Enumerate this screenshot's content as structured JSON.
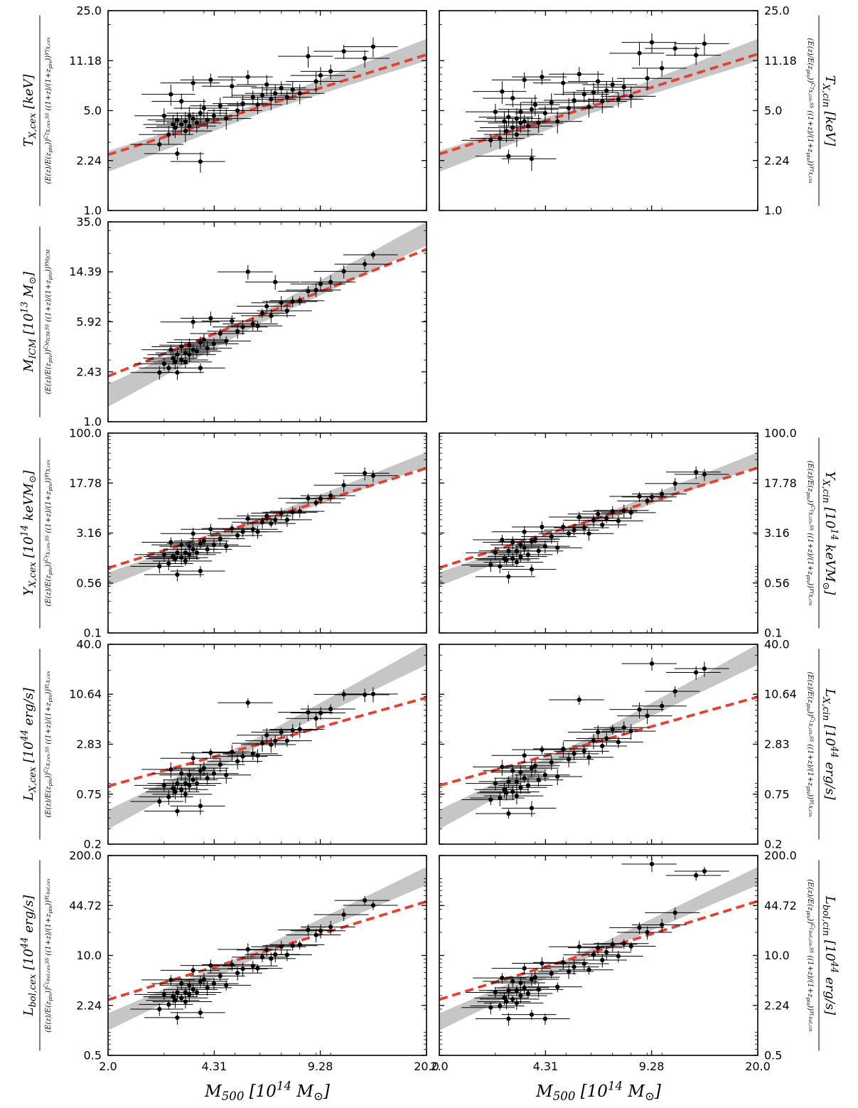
{
  "figure": {
    "background": "#ffffff",
    "accent_red": "#e8402e",
    "band_color": "#c6c6c6",
    "point_color": "#000000",
    "xlabel": "M_{500} [10^{14} M_{⊙}]",
    "xlim": [
      2.0,
      20.0
    ],
    "x_pivot": 6.0,
    "xticks": [
      2.0,
      4.31,
      9.28,
      20.0
    ],
    "xtick_labels": [
      "2.0",
      "4.31",
      "9.28",
      "20.0"
    ]
  },
  "clusters": {
    "m500": [
      2.9,
      3.0,
      3.1,
      3.15,
      3.2,
      3.25,
      3.3,
      3.3,
      3.4,
      3.4,
      3.5,
      3.5,
      3.6,
      3.6,
      3.7,
      3.7,
      3.8,
      3.9,
      3.9,
      4.0,
      4.1,
      4.2,
      4.3,
      4.5,
      4.7,
      4.9,
      5.1,
      5.3,
      5.5,
      5.7,
      5.9,
      6.1,
      6.3,
      6.5,
      6.7,
      7.0,
      7.3,
      7.6,
      8.0,
      8.5,
      9.0,
      9.3,
      10.0,
      11.0,
      12.8,
      13.6
    ],
    "m500_err": [
      0.55,
      0.58,
      0.6,
      0.6,
      0.62,
      0.62,
      0.64,
      0.7,
      0.66,
      0.72,
      0.68,
      0.74,
      0.7,
      0.76,
      0.72,
      0.78,
      0.74,
      0.76,
      0.84,
      0.78,
      0.8,
      0.82,
      0.84,
      0.88,
      0.92,
      0.96,
      1.0,
      1.04,
      1.08,
      1.12,
      1.15,
      1.2,
      1.23,
      1.27,
      1.31,
      1.37,
      1.43,
      1.49,
      1.56,
      1.66,
      1.76,
      1.82,
      1.95,
      2.15,
      2.5,
      2.65
    ]
  },
  "chart_data": [
    {
      "id": "tx-cex",
      "type": "scatter",
      "row": 0,
      "col": 0,
      "ylabel_num": "T_{X,cex} [keV]",
      "ylabel_den": "(E(z)/E(z_{piv}))^{C_{T_{X,cex},SS}} ((1+z)/(1+z_{piv}))^{γ_{T_{X,cex}}}",
      "ylim": [
        1.0,
        25.0
      ],
      "yticks": [
        1.0,
        2.236,
        5.0,
        11.18,
        25.0
      ],
      "ytick_labels": [
        "1.0",
        "2.24",
        "5.0",
        "11.18",
        "25.0"
      ],
      "band": {
        "y_pivot": 5.2,
        "slope": 0.78,
        "w0": 0.035,
        "w1": 0.08
      },
      "fit": {
        "y_pivot": 5.3,
        "slope": 0.7
      },
      "yerr_frac": 0.13,
      "y": [
        2.9,
        4.6,
        3.4,
        6.5,
        4.0,
        3.8,
        4.3,
        2.5,
        5.8,
        4.0,
        4.2,
        3.6,
        4.6,
        3.9,
        4.4,
        7.8,
        4.1,
        2.2,
        4.8,
        5.2,
        4.3,
        8.2,
        4.6,
        5.4,
        4.4,
        7.4,
        5.0,
        5.6,
        8.6,
        6.2,
        5.5,
        6.4,
        7.6,
        6.0,
        6.6,
        7.2,
        6.2,
        7.0,
        6.6,
        12.0,
        8.0,
        8.8,
        9.4,
        13.0,
        11.6,
        14.0
      ]
    },
    {
      "id": "tx-cin",
      "type": "scatter",
      "row": 0,
      "col": 1,
      "ylabel_num": "T_{X,cin} [keV]",
      "ylabel_den": "(E(z)/E(z_{piv}))^{C_{T_{X,cin},SS}} ((1+z)/(1+z_{piv}))^{γ_{T_{X,cin}}}",
      "ylim": [
        1.0,
        25.0
      ],
      "yticks": [
        1.0,
        2.236,
        5.0,
        11.18,
        25.0
      ],
      "ytick_labels": [
        "1.0",
        "2.24",
        "5.0",
        "11.18",
        "25.0"
      ],
      "band": {
        "y_pivot": 5.2,
        "slope": 0.78,
        "w0": 0.035,
        "w1": 0.08
      },
      "fit": {
        "y_pivot": 5.35,
        "slope": 0.7
      },
      "yerr_frac": 0.14,
      "y": [
        3.1,
        4.9,
        3.2,
        6.8,
        4.2,
        3.6,
        4.5,
        2.4,
        6.1,
        3.8,
        4.4,
        3.4,
        4.9,
        4.1,
        4.2,
        8.2,
        3.9,
        2.3,
        5.1,
        5.5,
        4.1,
        8.6,
        4.8,
        5.7,
        4.2,
        7.8,
        5.2,
        5.9,
        9.0,
        6.5,
        5.3,
        6.7,
        8.0,
        5.8,
        6.9,
        7.6,
        6.0,
        7.3,
        6.3,
        12.6,
        8.4,
        15.0,
        9.9,
        13.6,
        12.2,
        14.7
      ]
    },
    {
      "id": "micm",
      "type": "scatter",
      "row": 1,
      "col": 0,
      "ylabel_num": "M_{ICM} [10^{13} M_{⊙}]",
      "ylabel_den": "(E(z)/E(z_{piv}))^{C_{M_{ICM},SS}} ((1+z)/(1+z_{piv}))^{γ_{M_{ICM}}}",
      "ylim": [
        1.0,
        35.0
      ],
      "yticks": [
        1.0,
        2.43,
        5.92,
        14.39,
        35.0
      ],
      "ytick_labels": [
        "1.0",
        "2.43",
        "5.92",
        "14.39",
        "35.0"
      ],
      "band": {
        "y_pivot": 6.3,
        "slope": 1.25,
        "w0": 0.04,
        "w1": 0.1
      },
      "fit": {
        "y_pivot": 6.6,
        "slope": 0.98
      },
      "yerr_frac": 0.1,
      "y": [
        2.4,
        2.8,
        2.6,
        3.6,
        3.1,
        2.9,
        3.3,
        2.4,
        3.8,
        3.0,
        3.4,
        2.9,
        3.9,
        3.3,
        3.6,
        5.9,
        3.5,
        2.6,
        4.1,
        4.3,
        3.7,
        6.3,
        4.0,
        4.8,
        4.2,
        6.0,
        5.0,
        5.4,
        14.4,
        5.7,
        5.5,
        6.9,
        7.8,
        6.6,
        12.0,
        8.3,
        7.2,
        8.5,
        8.6,
        10.2,
        10.4,
        11.6,
        12.0,
        14.5,
        16.5,
        19.5
      ]
    },
    {
      "id": "yx-cex",
      "type": "scatter",
      "row": 2,
      "col": 0,
      "ylabel_num": "Y_{X,cex} [10^{14} keVM_{⊙}]",
      "ylabel_den": "(E(z)/E(z_{piv}))^{C_{Y_{X,cex},SS}} ((1+z)/(1+z_{piv}))^{γ_{Y_{X,cex}}}",
      "ylim": [
        0.1,
        100.0
      ],
      "yticks": [
        0.1,
        0.562,
        3.162,
        17.78,
        100.0
      ],
      "ytick_labels": [
        "0.1",
        "0.56",
        "3.16",
        "17.78",
        "100.0"
      ],
      "band": {
        "y_pivot": 4.6,
        "slope": 1.8,
        "w0": 0.05,
        "w1": 0.11
      },
      "fit": {
        "y_pivot": 4.9,
        "slope": 1.5
      },
      "yerr_frac": 0.17,
      "y": [
        1.0,
        1.5,
        1.1,
        2.3,
        1.4,
        1.3,
        1.6,
        0.75,
        2.1,
        1.35,
        1.6,
        1.2,
        2.0,
        1.5,
        1.8,
        3.1,
        1.6,
        0.85,
        2.2,
        2.4,
        1.8,
        3.6,
        2.1,
        2.6,
        2.0,
        3.7,
        2.9,
        3.3,
        5.2,
        3.6,
        3.3,
        4.6,
        5.7,
        4.4,
        5.0,
        6.3,
        5.0,
        6.5,
        6.7,
        10.5,
        9.0,
        10.4,
        11.5,
        16.5,
        25.0,
        23.0
      ]
    },
    {
      "id": "yx-cin",
      "type": "scatter",
      "row": 2,
      "col": 1,
      "ylabel_num": "Y_{X,cin} [10^{14} keVM_{⊙}]",
      "ylabel_den": "(E(z)/E(z_{piv}))^{C_{Y_{X,cin},SS}} ((1+z)/(1+z_{piv}))^{γ_{Y_{X,cin}}}",
      "ylim": [
        0.1,
        100.0
      ],
      "yticks": [
        0.1,
        0.562,
        3.162,
        17.78,
        100.0
      ],
      "ytick_labels": [
        "0.1",
        "0.56",
        "3.16",
        "17.78",
        "100.0"
      ],
      "band": {
        "y_pivot": 4.6,
        "slope": 1.8,
        "w0": 0.05,
        "w1": 0.11
      },
      "fit": {
        "y_pivot": 4.95,
        "slope": 1.5
      },
      "yerr_frac": 0.17,
      "y": [
        1.05,
        1.6,
        1.0,
        2.5,
        1.3,
        1.25,
        1.7,
        0.7,
        2.3,
        1.3,
        1.7,
        1.15,
        2.1,
        1.4,
        1.9,
        3.3,
        1.5,
        0.9,
        2.35,
        2.55,
        1.7,
        3.9,
        2.0,
        2.8,
        1.9,
        3.9,
        3.1,
        3.5,
        5.5,
        3.8,
        3.1,
        4.9,
        6.1,
        4.2,
        5.3,
        6.7,
        4.8,
        6.9,
        6.4,
        11.2,
        9.6,
        11.0,
        12.2,
        17.5,
        26.0,
        24.0
      ]
    },
    {
      "id": "lx-cex",
      "type": "scatter",
      "row": 3,
      "col": 0,
      "ylabel_num": "L_{X,cex} [10^{44} erg/s]",
      "ylabel_den": "(E(z)/E(z_{piv}))^{C_{L_{X,cex},SS}} ((1+z)/(1+z_{piv}))^{γ_{L_{X,cex}}}",
      "ylim": [
        0.2,
        40.0
      ],
      "yticks": [
        0.2,
        0.752,
        2.83,
        10.64,
        40.0
      ],
      "ytick_labels": [
        "0.2",
        "0.75",
        "2.83",
        "10.64",
        "40.0"
      ],
      "band": {
        "y_pivot": 3.1,
        "slope": 1.9,
        "w0": 0.05,
        "w1": 0.13
      },
      "fit": {
        "y_pivot": 2.85,
        "slope": 1.02
      },
      "yerr_frac": 0.16,
      "y": [
        0.62,
        0.95,
        0.7,
        1.45,
        0.88,
        0.8,
        1.0,
        0.48,
        1.3,
        0.85,
        1.0,
        0.75,
        1.25,
        0.95,
        1.1,
        1.95,
        1.0,
        0.55,
        1.4,
        1.5,
        1.15,
        2.25,
        1.3,
        1.65,
        1.25,
        2.3,
        1.8,
        2.05,
        8.5,
        2.2,
        2.1,
        2.9,
        3.6,
        2.8,
        3.1,
        3.9,
        3.1,
        4.1,
        4.2,
        6.6,
        5.6,
        6.5,
        7.2,
        10.6,
        10.5,
        10.7
      ]
    },
    {
      "id": "lx-cin",
      "type": "scatter",
      "row": 3,
      "col": 1,
      "ylabel_num": "L_{X,cin} [10^{44} erg/s]",
      "ylabel_den": "(E(z)/E(z_{piv}))^{C_{L_{X,cin},SS}} ((1+z)/(1+z_{piv}))^{γ_{L_{X,cin}}}",
      "ylim": [
        0.2,
        40.0
      ],
      "yticks": [
        0.2,
        0.752,
        2.83,
        10.64,
        40.0
      ],
      "ytick_labels": [
        "0.2",
        "0.75",
        "2.83",
        "10.64",
        "40.0"
      ],
      "band": {
        "y_pivot": 3.1,
        "slope": 1.9,
        "w0": 0.05,
        "w1": 0.13
      },
      "fit": {
        "y_pivot": 2.9,
        "slope": 1.02
      },
      "yerr_frac": 0.16,
      "y": [
        0.65,
        1.0,
        0.68,
        1.55,
        0.85,
        0.78,
        1.05,
        0.45,
        1.4,
        0.8,
        1.05,
        0.72,
        1.35,
        0.9,
        1.15,
        2.1,
        0.95,
        0.52,
        1.5,
        1.6,
        1.1,
        2.45,
        1.25,
        1.75,
        1.2,
        2.5,
        1.9,
        2.2,
        9.2,
        2.35,
        2.0,
        3.1,
        3.9,
        2.7,
        3.3,
        4.2,
        3.0,
        4.4,
        4.0,
        7.1,
        6.0,
        24.0,
        7.8,
        11.5,
        19.0,
        21.0
      ]
    },
    {
      "id": "lbol-cex",
      "type": "scatter",
      "row": 4,
      "col": 0,
      "ylabel_num": "L_{bol,cex} [10^{44} erg/s]",
      "ylabel_den": "(E(z)/E(z_{piv}))^{C_{L_{bol,cex},SS}} ((1+z)/(1+z_{piv}))^{γ_{L_{bol,cex}}}",
      "ylim": [
        0.5,
        200.0
      ],
      "yticks": [
        0.5,
        2.236,
        10.0,
        44.72,
        200.0
      ],
      "ytick_labels": [
        "0.5",
        "2.24",
        "10.0",
        "44.72",
        "200.0"
      ],
      "band": {
        "y_pivot": 11.0,
        "slope": 1.9,
        "w0": 0.05,
        "w1": 0.13
      },
      "fit": {
        "y_pivot": 10.8,
        "slope": 1.28
      },
      "yerr_frac": 0.16,
      "y": [
        2.0,
        3.1,
        2.3,
        4.8,
        2.9,
        2.6,
        3.3,
        1.55,
        4.3,
        2.8,
        3.3,
        2.5,
        4.1,
        3.1,
        3.6,
        6.4,
        3.3,
        1.8,
        4.6,
        4.9,
        3.8,
        7.4,
        4.3,
        5.4,
        4.1,
        7.6,
        5.9,
        6.7,
        12.0,
        7.3,
        6.8,
        9.5,
        11.8,
        9.1,
        10.3,
        13.0,
        10.2,
        13.4,
        13.8,
        21.5,
        18.5,
        21.0,
        23.5,
        34.0,
        52.0,
        45.0
      ]
    },
    {
      "id": "lbol-cin",
      "type": "scatter",
      "row": 4,
      "col": 1,
      "ylabel_num": "L_{bol,cin} [10^{44} erg/s]",
      "ylabel_den": "(E(z)/E(z_{piv}))^{C_{L_{bol,cin},SS}} ((1+z)/(1+z_{piv}))^{γ_{L_{bol,cin}}}",
      "ylim": [
        0.5,
        200.0
      ],
      "yticks": [
        0.5,
        2.236,
        10.0,
        44.72,
        200.0
      ],
      "ytick_labels": [
        "0.5",
        "2.24",
        "10.0",
        "44.72",
        "200.0"
      ],
      "band": {
        "y_pivot": 11.0,
        "slope": 1.9,
        "w0": 0.05,
        "w1": 0.13
      },
      "fit": {
        "y_pivot": 10.9,
        "slope": 1.28
      },
      "yerr_frac": 0.16,
      "y": [
        2.1,
        3.3,
        2.2,
        5.1,
        2.8,
        2.5,
        3.5,
        1.5,
        4.6,
        2.7,
        3.5,
        2.4,
        4.4,
        3.0,
        3.8,
        6.8,
        3.2,
        1.7,
        4.9,
        5.2,
        3.6,
        7.9,
        1.5,
        5.8,
        3.9,
        8.1,
        6.2,
        7.1,
        13.0,
        7.8,
        6.5,
        10.2,
        12.6,
        8.7,
        11.0,
        14.0,
        9.8,
        14.3,
        13.2,
        23.0,
        20.0,
        155.0,
        25.0,
        36.0,
        110.0,
        125.0
      ]
    }
  ]
}
